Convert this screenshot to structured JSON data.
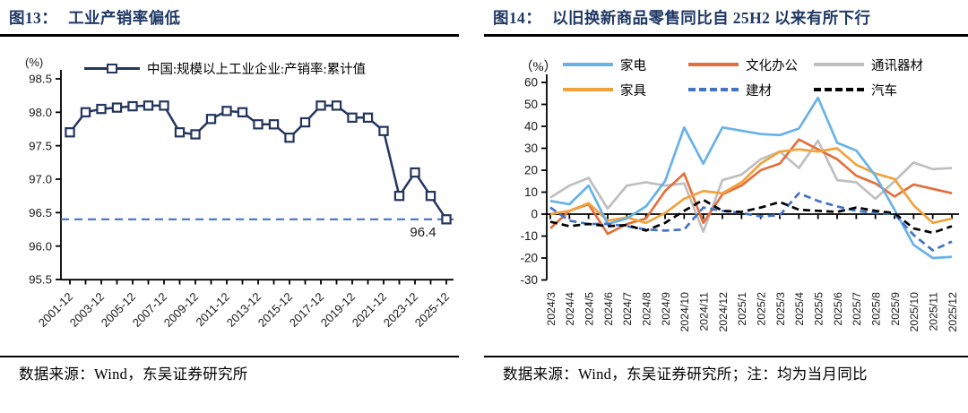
{
  "figure13": {
    "title_prefix": "图13：",
    "title": "工业产销率偏低",
    "source": "数据来源：Wind，东吴证券研究所"
  },
  "figure14": {
    "title_prefix": "图14：",
    "title": "以旧换新商品零售同比自 25H2 以来有所下行",
    "source": "数据来源：Wind，东吴证券研究所；注：均为当月同比"
  },
  "colors": {
    "title_navy": "#1F3864",
    "line_navy": "#24365E",
    "refline_blue": "#4472C4",
    "appliance_blue": "#67B2E8",
    "culture_orange": "#E1703C",
    "telecom_gray": "#BFBFBF",
    "furniture_amber": "#F2A23C",
    "building_blue": "#4472C4",
    "auto_black": "#000000"
  },
  "chart_data": [
    {
      "type": "line",
      "title": "图13：工业产销率偏低",
      "unit": "(%)",
      "ylabel": "",
      "xlabel": "",
      "ylim": [
        95.5,
        98.5
      ],
      "yticks": [
        98.5,
        98.0,
        97.5,
        97.0,
        96.5,
        96.0,
        95.5
      ],
      "grid": false,
      "legend_position": "top",
      "categories": [
        "2001-12",
        "2002-12",
        "2003-12",
        "2004-12",
        "2005-12",
        "2006-12",
        "2007-12",
        "2008-12",
        "2009-12",
        "2010-12",
        "2011-12",
        "2012-12",
        "2013-12",
        "2014-12",
        "2015-12",
        "2016-12",
        "2017-12",
        "2018-12",
        "2019-12",
        "2020-12",
        "2021-12",
        "2022-12",
        "2023-12",
        "2024-12",
        "2025-12"
      ],
      "x_tick_labels": [
        "2001-12",
        "2003-12",
        "2005-12",
        "2007-12",
        "2009-12",
        "2011-12",
        "2013-12",
        "2015-12",
        "2017-12",
        "2019-12",
        "2021-12",
        "2023-12",
        "2025-12"
      ],
      "series": [
        {
          "name": "中国:规模以上工业企业:产销率:累计值",
          "color": "#24365E",
          "marker": "square",
          "values": [
            97.7,
            98.0,
            98.05,
            98.07,
            98.09,
            98.1,
            98.1,
            97.7,
            97.67,
            97.9,
            98.02,
            98.0,
            97.82,
            97.82,
            97.62,
            97.85,
            98.1,
            98.1,
            97.92,
            97.92,
            97.72,
            96.75,
            97.1,
            96.75,
            96.4
          ]
        }
      ],
      "refline": {
        "value": 96.4,
        "color": "#4472C4",
        "style": "dashed"
      },
      "annotation": {
        "text": "96.4",
        "at_category": "2025-12"
      }
    },
    {
      "type": "line",
      "title": "图14：以旧换新商品零售同比自 25H2 以来有所下行",
      "unit": "（%）",
      "ylabel": "",
      "xlabel": "",
      "ylim": [
        -30,
        60
      ],
      "yticks": [
        60,
        50,
        40,
        30,
        20,
        10,
        0,
        -10,
        -20,
        -30
      ],
      "grid": false,
      "legend_position": "top",
      "legend_rows": [
        [
          "家电",
          "文化办公",
          "通讯器材"
        ],
        [
          "家具",
          "建材",
          "汽车"
        ]
      ],
      "categories": [
        "2024/3",
        "2024/4",
        "2024/5",
        "2024/6",
        "2024/7",
        "2024/8",
        "2024/9",
        "2024/10",
        "2024/11",
        "2024/12",
        "2025/1",
        "2025/2",
        "2025/3",
        "2025/4",
        "2025/5",
        "2025/6",
        "2025/7",
        "2025/8",
        "2025/9",
        "2025/10",
        "2025/11",
        "2025/12"
      ],
      "series": [
        {
          "name": "家电",
          "color": "#67B2E8",
          "dash": false,
          "values": [
            6,
            4.5,
            13,
            -4.5,
            -2,
            3.5,
            15,
            39.5,
            23,
            39.5,
            38,
            36.5,
            36,
            39,
            53,
            32.5,
            29,
            17.5,
            2,
            -14,
            -20,
            -19.5
          ]
        },
        {
          "name": "文化办公",
          "color": "#E1703C",
          "dash": false,
          "values": [
            -6.5,
            1.5,
            4.5,
            -9,
            -4.5,
            -2,
            10.5,
            18.5,
            -4,
            9,
            13,
            20,
            23,
            34,
            29.5,
            25,
            17.5,
            14,
            8,
            13.5,
            11.5,
            9.5
          ]
        },
        {
          "name": "通讯器材",
          "color": "#BFBFBF",
          "dash": false,
          "values": [
            7.5,
            13,
            16.5,
            2.5,
            13,
            14.5,
            13,
            14,
            -8,
            15.5,
            18,
            25,
            28.5,
            21,
            33.5,
            15.5,
            14.5,
            7,
            15,
            23.5,
            20.5,
            21
          ]
        },
        {
          "name": "家具",
          "color": "#F2A23C",
          "dash": false,
          "values": [
            0,
            1.5,
            5,
            -3,
            -1.5,
            -4,
            0.5,
            7,
            10.5,
            9.5,
            14.5,
            23,
            28.5,
            29.5,
            28.5,
            30,
            22.5,
            18.5,
            16,
            4,
            -4,
            -2
          ]
        },
        {
          "name": "建材",
          "color": "#4472C4",
          "dash": true,
          "values": [
            3,
            -3,
            -4.5,
            -4.5,
            -5.5,
            -7,
            -7.5,
            -7,
            3,
            1.5,
            0.5,
            -1,
            -0.5,
            9.5,
            6,
            3.5,
            1.5,
            0.5,
            0,
            -9.5,
            -16.5,
            -12.5
          ]
        },
        {
          "name": "汽车",
          "color": "#000000",
          "dash": true,
          "values": [
            -3.5,
            -5.5,
            -4.5,
            -5.5,
            -5,
            -7.5,
            -4,
            1.5,
            6.5,
            1.5,
            1,
            3,
            5.5,
            2,
            1.5,
            1,
            3,
            1.5,
            0.5,
            -6.5,
            -8.5,
            -5.5
          ]
        }
      ]
    }
  ]
}
